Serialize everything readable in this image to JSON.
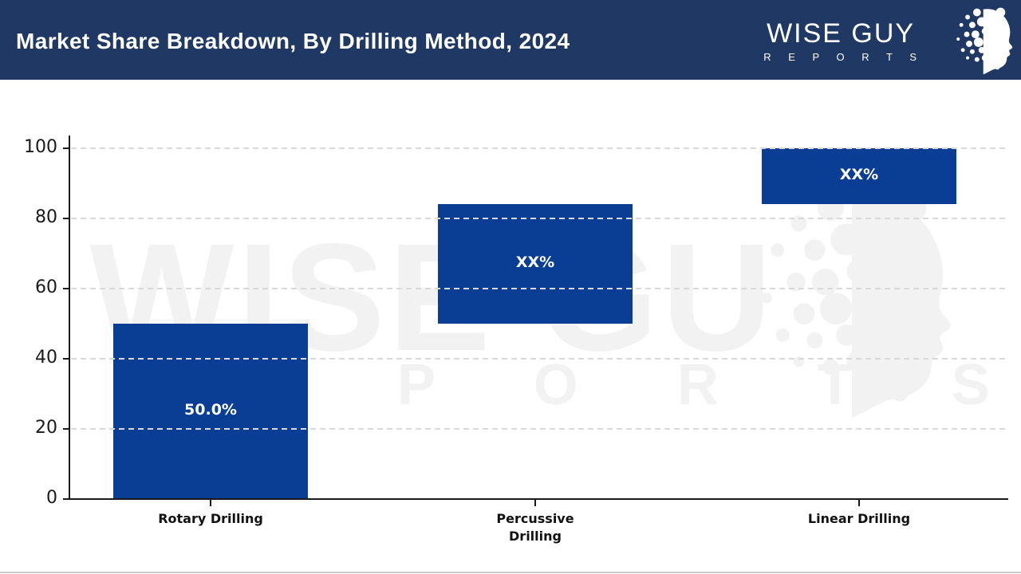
{
  "header": {
    "title": "Market Share Breakdown, By Drilling Method, 2024",
    "bg_color": "#1f3864",
    "logo": {
      "line1": "WISE GUY",
      "line2": "R E P O R T S"
    }
  },
  "watermark": {
    "word": "WISE GU",
    "reports": "R E P O R T S"
  },
  "chart_data": {
    "type": "bar",
    "variant": "floating-waterfall-segments",
    "title": "Market Share Breakdown, By Drilling Method, 2024",
    "categories": [
      "Rotary Drilling",
      "Percussive\nDrilling",
      "Linear Drilling"
    ],
    "segments": [
      {
        "category": "Rotary Drilling",
        "start": 0,
        "end": 50,
        "label": "50.0%"
      },
      {
        "category": "Percussive Drilling",
        "start": 50,
        "end": 84,
        "label": "XX%"
      },
      {
        "category": "Linear Drilling",
        "start": 84,
        "end": 100,
        "label": "XX%"
      }
    ],
    "yticks": [
      0,
      20,
      40,
      60,
      80,
      100
    ],
    "ylim": [
      0,
      104
    ],
    "xlabel": "",
    "ylabel": "",
    "grid": "horizontal-dashed-over-bars",
    "legend": "none",
    "bar_color": "#0a3d94",
    "bar_label_color": "#ffffff",
    "grid_color": "#d9d9d9",
    "axis_color": "#1a1a1a"
  }
}
